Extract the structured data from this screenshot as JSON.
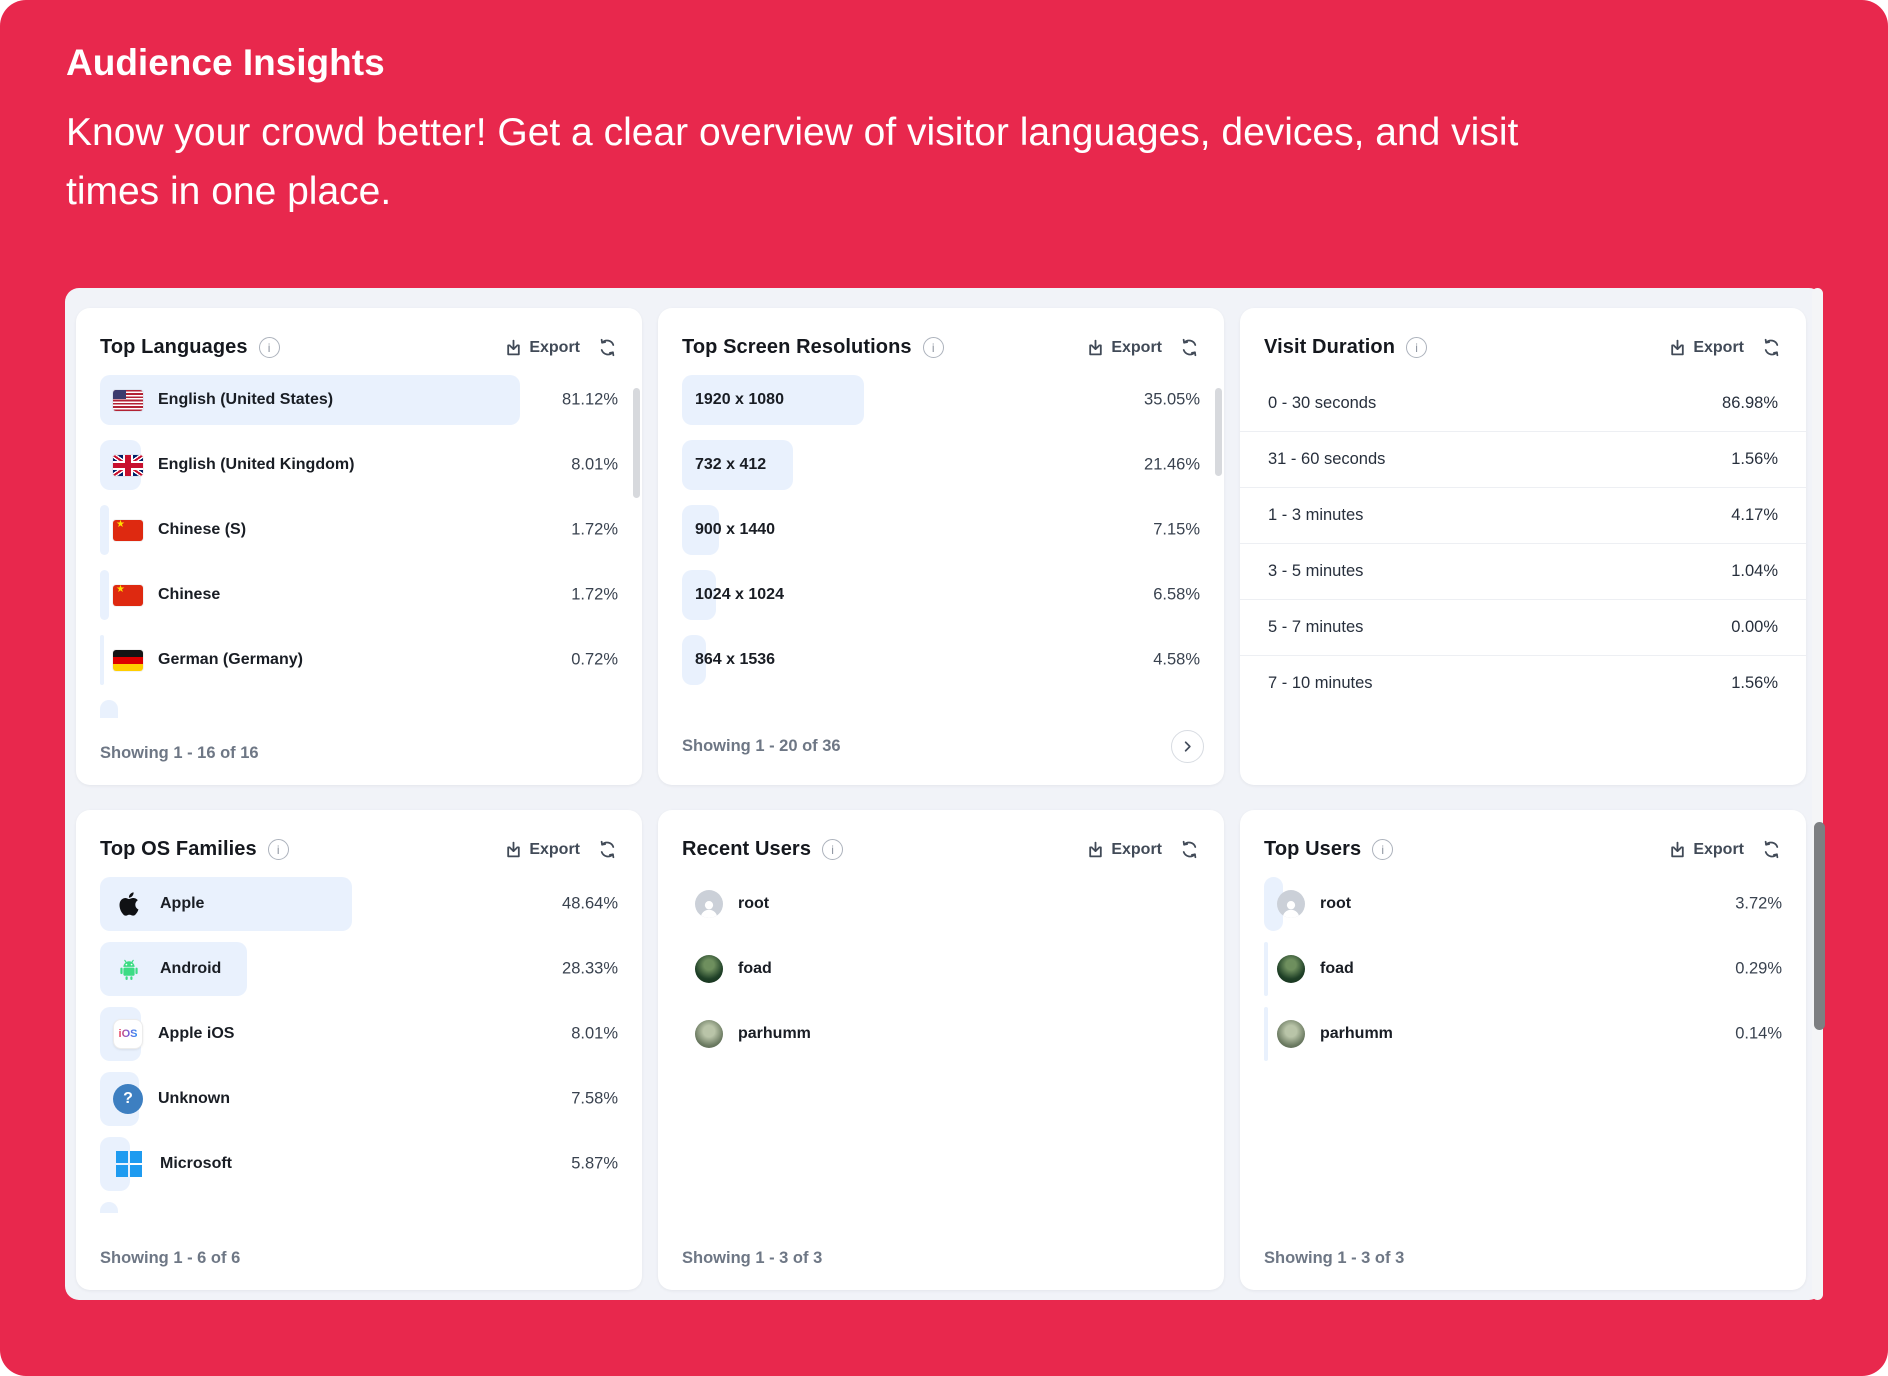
{
  "header": {
    "title": "Audience Insights",
    "subtitle": "Know your crowd better! Get a clear overview of visitor languages, devices, and visit times in one place."
  },
  "ui": {
    "export_label": "Export"
  },
  "colors": {
    "frame_red": "#e8284d",
    "panel_gray": "#f1f3f8",
    "bar_blue": "#e9f1fd",
    "microsoft_blue": "#1e9bf0",
    "android_green": "#3ddc84",
    "unknown_blue": "#3d7fc1"
  },
  "cards": [
    {
      "title": "Top Languages",
      "showing": "Showing 1 - 16 of 16",
      "rows": [
        {
          "icon": "us-flag",
          "label": "English (United States)",
          "value": "81.12%",
          "pct": 81.12
        },
        {
          "icon": "uk-flag",
          "label": "English (United Kingdom)",
          "value": "8.01%",
          "pct": 8.01
        },
        {
          "icon": "china-flag",
          "label": "Chinese (S)",
          "value": "1.72%",
          "pct": 1.72
        },
        {
          "icon": "china-flag",
          "label": "Chinese",
          "value": "1.72%",
          "pct": 1.72
        },
        {
          "icon": "germany-flag",
          "label": "German (Germany)",
          "value": "0.72%",
          "pct": 0.72
        }
      ]
    },
    {
      "title": "Top Screen Resolutions",
      "showing": "Showing 1 - 20 of 36",
      "rows": [
        {
          "label": "1920 x 1080",
          "value": "35.05%",
          "pct": 35.05
        },
        {
          "label": "732 x 412",
          "value": "21.46%",
          "pct": 21.46
        },
        {
          "label": "900 x 1440",
          "value": "7.15%",
          "pct": 7.15
        },
        {
          "label": "1024 x 1024",
          "value": "6.58%",
          "pct": 6.58
        },
        {
          "label": "864 x 1536",
          "value": "4.58%",
          "pct": 4.58
        }
      ]
    },
    {
      "title": "Visit Duration",
      "rows": [
        {
          "label": "0 - 30 seconds",
          "value": "86.98%"
        },
        {
          "label": "31 - 60 seconds",
          "value": "1.56%"
        },
        {
          "label": "1 - 3 minutes",
          "value": "4.17%"
        },
        {
          "label": "3 - 5 minutes",
          "value": "1.04%"
        },
        {
          "label": "5 - 7 minutes",
          "value": "0.00%"
        },
        {
          "label": "7 - 10 minutes",
          "value": "1.56%"
        }
      ]
    },
    {
      "title": "Top OS Families",
      "showing": "Showing 1 - 6 of 6",
      "rows": [
        {
          "icon": "apple",
          "label": "Apple",
          "value": "48.64%",
          "pct": 48.64
        },
        {
          "icon": "android",
          "label": "Android",
          "value": "28.33%",
          "pct": 28.33
        },
        {
          "icon": "apple-ios",
          "icon_label": "iOS",
          "label": "Apple iOS",
          "value": "8.01%",
          "pct": 8.01
        },
        {
          "icon": "unknown",
          "icon_label": "?",
          "label": "Unknown",
          "value": "7.58%",
          "pct": 7.58
        },
        {
          "icon": "microsoft",
          "label": "Microsoft",
          "value": "5.87%",
          "pct": 5.87
        }
      ]
    },
    {
      "title": "Recent Users",
      "showing": "Showing 1 - 3 of 3",
      "rows": [
        {
          "icon": "avatar-root",
          "label": "root"
        },
        {
          "icon": "avatar-foad",
          "label": "foad"
        },
        {
          "icon": "avatar-parhumm",
          "label": "parhumm"
        }
      ]
    },
    {
      "title": "Top Users",
      "showing": "Showing 1 - 3 of 3",
      "rows": [
        {
          "icon": "avatar-root",
          "label": "root",
          "value": "3.72%",
          "pct": 3.72
        },
        {
          "icon": "avatar-foad",
          "label": "foad",
          "value": "0.29%",
          "pct": 0.29
        },
        {
          "icon": "avatar-parhumm",
          "label": "parhumm",
          "value": "0.14%",
          "pct": 0.14
        }
      ]
    }
  ]
}
